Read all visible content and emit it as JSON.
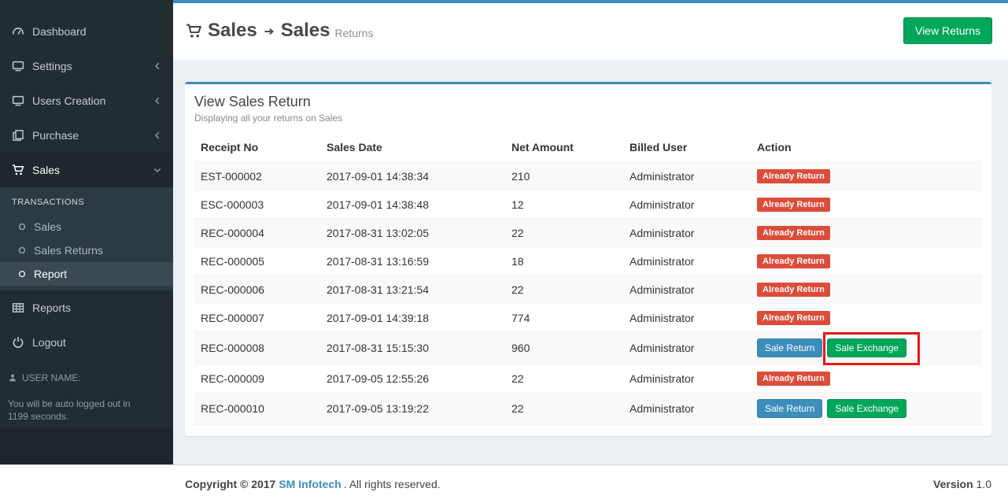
{
  "colors": {
    "accent": "#3c8dbc",
    "success": "#00a65a",
    "danger": "#dd4b39",
    "sidebar": "#222d32",
    "submenu": "#2c3b41",
    "annotation": "#e81717"
  },
  "sidebar": {
    "items": [
      {
        "id": "dashboard",
        "label": "Dashboard",
        "icon": "dashboard-icon"
      },
      {
        "id": "settings",
        "label": "Settings",
        "icon": "monitor-icon",
        "chevron": "left"
      },
      {
        "id": "users-creation",
        "label": "Users Creation",
        "icon": "monitor-icon",
        "chevron": "left"
      },
      {
        "id": "purchase",
        "label": "Purchase",
        "icon": "copy-icon",
        "chevron": "left"
      },
      {
        "id": "sales",
        "label": "Sales",
        "icon": "cart-icon",
        "chevron": "down",
        "active": true
      }
    ],
    "submenu_header": "TRANSACTIONS",
    "submenu_items": [
      {
        "id": "sales",
        "label": "Sales",
        "icon": "circle-icon"
      },
      {
        "id": "sales-returns",
        "label": "Sales Returns",
        "icon": "circle-icon"
      },
      {
        "id": "report",
        "label": "Report",
        "icon": "circle-icon",
        "highlighted": true
      }
    ],
    "bottom_items": [
      {
        "id": "reports",
        "label": "Reports",
        "icon": "table-icon"
      },
      {
        "id": "logout",
        "label": "Logout",
        "icon": "power-icon"
      }
    ],
    "user_label": "USER NAME:",
    "logout_notice": "You will be auto logged out in 1199 seconds."
  },
  "header": {
    "section": "Sales",
    "page": "Sales",
    "page_sub": "Returns",
    "button_label": "View Returns"
  },
  "card": {
    "title": "View Sales Return",
    "subtitle": "Displaying all your returns on Sales"
  },
  "table": {
    "headers": [
      "Receipt No",
      "Sales Date",
      "Net Amount",
      "Billed User",
      "Action"
    ],
    "rows": [
      {
        "receipt": "EST-000002",
        "date": "2017-09-01 14:38:34",
        "amount": "210",
        "user": "Administrator",
        "actions": [
          {
            "label": "Already Return",
            "kind": "badge",
            "name": "already-return-badge"
          }
        ]
      },
      {
        "receipt": "ESC-000003",
        "date": "2017-09-01 14:38:48",
        "amount": "12",
        "user": "Administrator",
        "actions": [
          {
            "label": "Already Return",
            "kind": "badge",
            "name": "already-return-badge"
          }
        ]
      },
      {
        "receipt": "REC-000004",
        "date": "2017-08-31 13:02:05",
        "amount": "22",
        "user": "Administrator",
        "actions": [
          {
            "label": "Already Return",
            "kind": "badge",
            "name": "already-return-badge"
          }
        ]
      },
      {
        "receipt": "REC-000005",
        "date": "2017-08-31 13:16:59",
        "amount": "18",
        "user": "Administrator",
        "actions": [
          {
            "label": "Already Return",
            "kind": "badge",
            "name": "already-return-badge"
          }
        ]
      },
      {
        "receipt": "REC-000006",
        "date": "2017-08-31 13:21:54",
        "amount": "22",
        "user": "Administrator",
        "actions": [
          {
            "label": "Already Return",
            "kind": "badge",
            "name": "already-return-badge"
          }
        ]
      },
      {
        "receipt": "REC-000007",
        "date": "2017-09-01 14:39:18",
        "amount": "774",
        "user": "Administrator",
        "actions": [
          {
            "label": "Already Return",
            "kind": "badge",
            "name": "already-return-badge"
          }
        ]
      },
      {
        "receipt": "REC-000008",
        "date": "2017-08-31 15:15:30",
        "amount": "960",
        "user": "Administrator",
        "actions": [
          {
            "label": "Sale Return",
            "kind": "button",
            "style": "primary",
            "name": "sale-return-button"
          },
          {
            "label": "Sale Exchange",
            "kind": "button",
            "style": "success",
            "name": "sale-exchange-button",
            "annotated": true
          }
        ]
      },
      {
        "receipt": "REC-000009",
        "date": "2017-09-05 12:55:26",
        "amount": "22",
        "user": "Administrator",
        "actions": [
          {
            "label": "Already Return",
            "kind": "badge",
            "name": "already-return-badge"
          }
        ]
      },
      {
        "receipt": "REC-000010",
        "date": "2017-09-05 13:19:22",
        "amount": "22",
        "user": "Administrator",
        "actions": [
          {
            "label": "Sale Return",
            "kind": "button",
            "style": "primary",
            "name": "sale-return-button"
          },
          {
            "label": "Sale Exchange",
            "kind": "button",
            "style": "success",
            "name": "sale-exchange-button"
          }
        ]
      }
    ]
  },
  "footer": {
    "copyright_prefix": "Copyright © 2017",
    "brand": "SM Infotech",
    "copyright_suffix": ". All rights reserved.",
    "version_label": "Version",
    "version_value": "1.0"
  }
}
